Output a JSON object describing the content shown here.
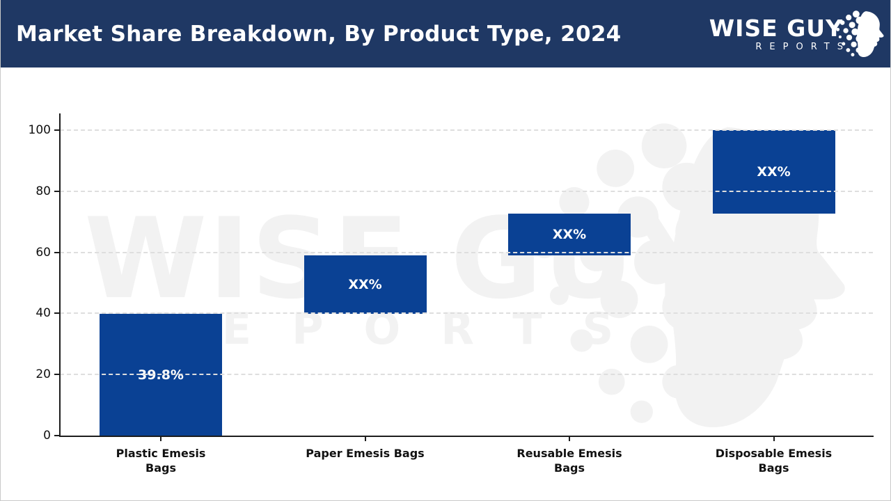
{
  "header": {
    "title": "Market Share Breakdown, By Product Type, 2024",
    "bg_color": "#1f3864",
    "logo": {
      "name": "Wise Guy Reports",
      "line1": "WISE GUY",
      "line2": "REPORTS"
    }
  },
  "watermark": {
    "line1": "WISE GUY",
    "line2": "REPORTS"
  },
  "chart_data": {
    "type": "bar",
    "subtype": "waterfall-floating-bars",
    "title": "Market Share Breakdown, By Product Type, 2024",
    "categories": [
      "Plastic Emesis\nBags",
      "Paper Emesis Bags",
      "Reusable Emesis\nBags",
      "Disposable Emesis\nBags"
    ],
    "series": [
      {
        "name": "Market share (%)",
        "segments": [
          {
            "category": "Plastic Emesis Bags",
            "start": 0,
            "end": 39.8,
            "label": "39.8%"
          },
          {
            "category": "Paper Emesis Bags",
            "start": 39.8,
            "end": 59.0,
            "label": "XX%"
          },
          {
            "category": "Reusable Emesis Bags",
            "start": 59.0,
            "end": 72.7,
            "label": "XX%"
          },
          {
            "category": "Disposable Emesis Bags",
            "start": 72.7,
            "end": 100.0,
            "label": "XX%"
          }
        ]
      }
    ],
    "xlabel": "",
    "ylabel": "",
    "yticks": [
      0,
      20,
      40,
      60,
      80,
      100
    ],
    "ylim": [
      0,
      105.5
    ],
    "grid": "horizontal-dashed",
    "legend": "none",
    "bar_color": "#0a4194",
    "bar_label_color": "#ffffff"
  }
}
